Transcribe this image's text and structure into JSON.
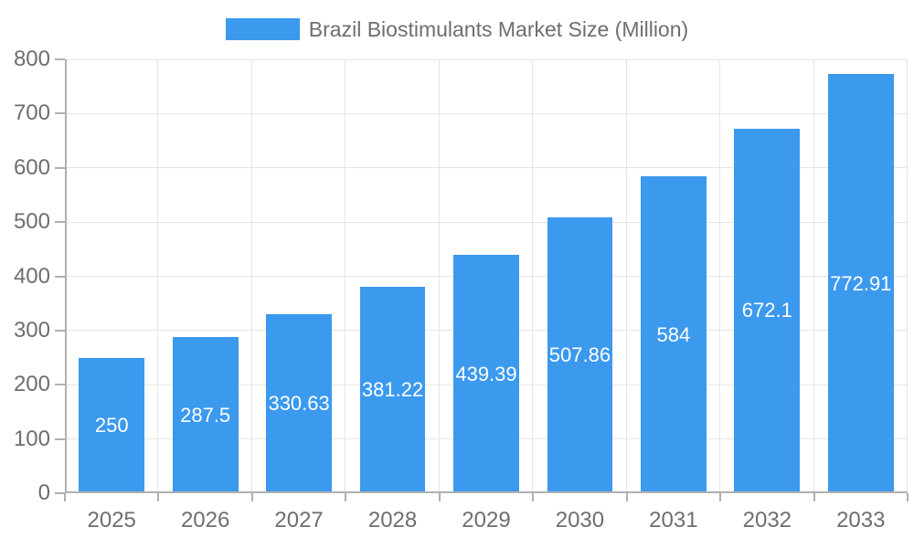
{
  "legend": {
    "label": "Brazil Biostimulants Market Size (Million)"
  },
  "chart_data": {
    "type": "bar",
    "title": "",
    "series_name": "Brazil Biostimulants Market Size (Million)",
    "categories": [
      "2025",
      "2026",
      "2027",
      "2028",
      "2029",
      "2030",
      "2031",
      "2032",
      "2033"
    ],
    "values": [
      250,
      287.5,
      330.63,
      381.22,
      439.39,
      507.86,
      584,
      672.1,
      772.91
    ],
    "value_labels": [
      "250",
      "287.5",
      "330.63",
      "381.22",
      "439.39",
      "507.86",
      "584",
      "672.1",
      "772.91"
    ],
    "xlabel": "",
    "ylabel": "",
    "ylim": [
      0,
      800
    ],
    "yticks": [
      0,
      100,
      200,
      300,
      400,
      500,
      600,
      700,
      800
    ],
    "grid": true,
    "legend_position": "top",
    "bar_color": "#3b99ee",
    "value_label_color": "#ffffff",
    "axis_text_color": "#6e6e6e",
    "gridline_color": "#e5e5e5",
    "axis_line_color": "#b0b0b0"
  }
}
